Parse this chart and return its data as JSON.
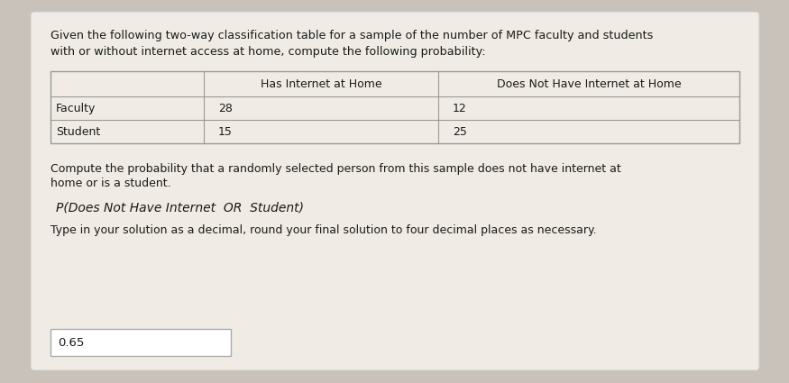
{
  "title_line1": "Given the following two-way classification table for a sample of the number of MPC faculty and students",
  "title_line2": "with or without internet access at home, compute the following probability:",
  "table_col_headers": [
    "",
    "Has Internet at Home",
    "Does Not Have Internet at Home"
  ],
  "table_rows": [
    [
      "Faculty",
      "28",
      "12"
    ],
    [
      "Student",
      "15",
      "25"
    ]
  ],
  "question_text_line1": "Compute the probability that a randomly selected person from this sample does not have internet at",
  "question_text_line2": "home or is a student.",
  "probability_label": "P(Does Not Have Internet  OR  Student)",
  "instruction_text": "Type in your solution as a decimal, round your final solution to four decimal places as necessary.",
  "answer": "0.65",
  "bg_color": "#c8c2ba",
  "card_color": "#f0ece5",
  "table_border_color": "#999999",
  "answer_box_color": "#ffffff",
  "text_color": "#1a1a1a",
  "answer_box_border": "#aaaaaa",
  "table_header_fontsize": 9.0,
  "table_data_fontsize": 9.0,
  "title_fontsize": 9.2,
  "body_fontsize": 9.0,
  "prob_fontsize": 10.0,
  "answer_fontsize": 9.5
}
